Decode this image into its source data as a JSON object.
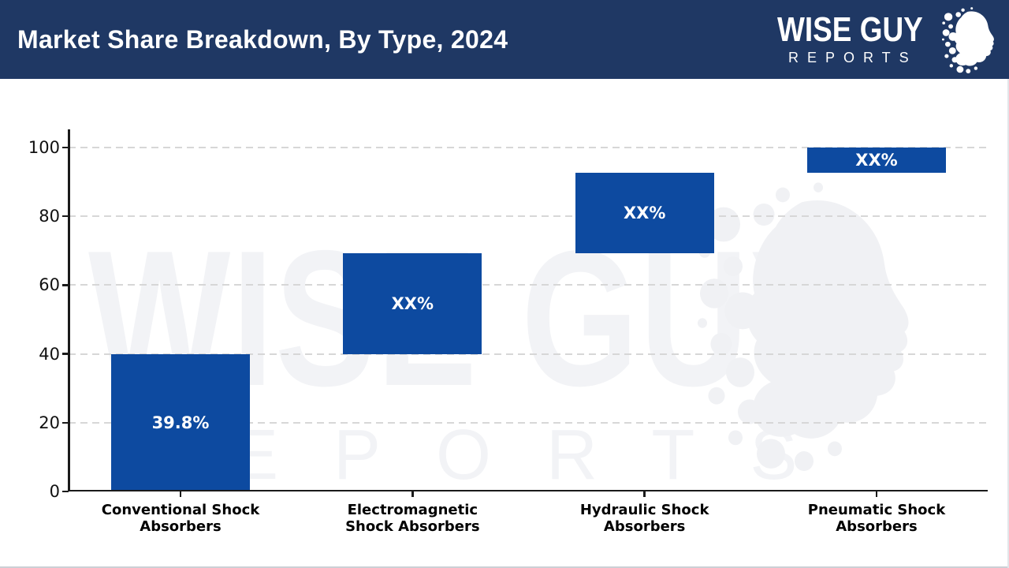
{
  "header": {
    "title": "Market Share Breakdown, By Type, 2024",
    "logo": {
      "line1": "WISE GUY",
      "line2": "REPORTS"
    }
  },
  "watermark": {
    "line1": "WISE GUY",
    "line2": "REPORTS"
  },
  "chart_data": {
    "type": "bar",
    "subtype": "waterfall",
    "title": "Market Share Breakdown, By Type, 2024",
    "categories": [
      "Conventional Shock Absorbers",
      "Electromagnetic Shock Absorbers",
      "Hydraulic Shock Absorbers",
      "Pneumatic Shock Absorbers"
    ],
    "category_label_lines": [
      [
        "Conventional Shock",
        "Absorbers"
      ],
      [
        "Electromagnetic",
        "Shock Absorbers"
      ],
      [
        "Hydraulic Shock",
        "Absorbers"
      ],
      [
        "Pneumatic Shock",
        "Absorbers"
      ]
    ],
    "bars": [
      {
        "category": "Conventional Shock Absorbers",
        "start": 0,
        "end": 39.8,
        "label": "39.8%"
      },
      {
        "category": "Electromagnetic Shock Absorbers",
        "start": 39.8,
        "end": 69.3,
        "label": "XX%"
      },
      {
        "category": "Hydraulic Shock Absorbers",
        "start": 69.3,
        "end": 92.7,
        "label": "XX%"
      },
      {
        "category": "Pneumatic Shock Absorbers",
        "start": 92.7,
        "end": 100,
        "label": "XX%"
      }
    ],
    "yticks": [
      0,
      20,
      40,
      60,
      80,
      100
    ],
    "ylim": [
      0,
      105
    ],
    "xlabel": "",
    "ylabel": "",
    "grid": "horizontal-dashed",
    "legend": "none",
    "bar_color": "#0d4aa0",
    "value_label_color": "#ffffff"
  },
  "colors": {
    "header_bg": "#1f3864",
    "bar": "#0d4aa0",
    "axis": "#1a1a1a",
    "gridline": "#d7d7d7",
    "watermark": "#f2f3f6"
  }
}
